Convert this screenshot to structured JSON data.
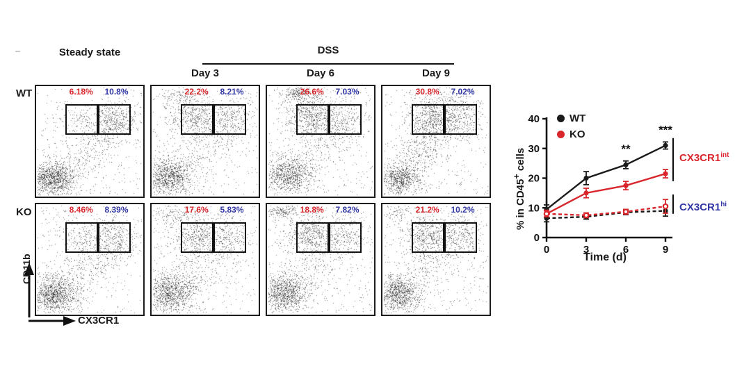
{
  "figure": {
    "headers": {
      "steady_state": "Steady state",
      "dss": "DSS",
      "days": [
        "Day 3",
        "Day 6",
        "Day 9"
      ]
    },
    "row_labels": [
      "WT",
      "KO"
    ],
    "axis": {
      "x": "CX3CR1",
      "y": "CD11b"
    },
    "colors": {
      "red": "#d9262c",
      "blue": "#3138a5",
      "black": "#1a1a1a"
    }
  },
  "flow_panels": {
    "gate_names": [
      "CX3CR1-int gate",
      "CX3CR1-hi gate"
    ],
    "rows": [
      {
        "label": "WT",
        "cells": [
          {
            "condition": "Steady state",
            "int_pct": "6.18%",
            "hi_pct": "10.8%",
            "clusters": [
              {
                "t": "noise",
                "n": 300
              },
              {
                "t": "blob",
                "x": 0.15,
                "y": 0.84,
                "sx": 0.1,
                "sy": 0.07,
                "n": 950
              },
              {
                "t": "band",
                "x0": 0.08,
                "y0": 0.94,
                "x1": 0.88,
                "y1": 0.22,
                "w": 0.1,
                "n": 520
              },
              {
                "t": "blob",
                "x": 0.42,
                "y": 0.31,
                "sx": 0.11,
                "sy": 0.09,
                "n": 130
              },
              {
                "t": "blob",
                "x": 0.74,
                "y": 0.3,
                "sx": 0.1,
                "sy": 0.09,
                "n": 320
              }
            ]
          },
          {
            "condition": "DSS Day 3",
            "int_pct": "22.2%",
            "hi_pct": "8.21%",
            "clusters": [
              {
                "t": "noise",
                "n": 320
              },
              {
                "t": "blob",
                "x": 0.16,
                "y": 0.82,
                "sx": 0.1,
                "sy": 0.08,
                "n": 800
              },
              {
                "t": "band",
                "x0": 0.1,
                "y0": 0.92,
                "x1": 0.8,
                "y1": 0.3,
                "w": 0.11,
                "n": 380
              },
              {
                "t": "blob",
                "x": 0.4,
                "y": 0.28,
                "sx": 0.12,
                "sy": 0.1,
                "n": 520
              },
              {
                "t": "blob",
                "x": 0.72,
                "y": 0.3,
                "sx": 0.1,
                "sy": 0.09,
                "n": 220
              },
              {
                "t": "blob",
                "x": 0.25,
                "y": 0.08,
                "sx": 0.1,
                "sy": 0.04,
                "n": 90
              }
            ]
          },
          {
            "condition": "DSS Day 6",
            "int_pct": "26.6%",
            "hi_pct": "7.03%",
            "clusters": [
              {
                "t": "noise",
                "n": 320
              },
              {
                "t": "blob",
                "x": 0.2,
                "y": 0.8,
                "sx": 0.11,
                "sy": 0.08,
                "n": 750
              },
              {
                "t": "band",
                "x0": 0.12,
                "y0": 0.9,
                "x1": 0.75,
                "y1": 0.32,
                "w": 0.1,
                "n": 320
              },
              {
                "t": "blob",
                "x": 0.4,
                "y": 0.27,
                "sx": 0.12,
                "sy": 0.1,
                "n": 600
              },
              {
                "t": "blob",
                "x": 0.72,
                "y": 0.3,
                "sx": 0.1,
                "sy": 0.09,
                "n": 200
              },
              {
                "t": "blob",
                "x": 0.28,
                "y": 0.06,
                "sx": 0.08,
                "sy": 0.035,
                "n": 230
              }
            ]
          },
          {
            "condition": "DSS Day 9",
            "int_pct": "30.8%",
            "hi_pct": "7.02%",
            "clusters": [
              {
                "t": "noise",
                "n": 320
              },
              {
                "t": "blob",
                "x": 0.16,
                "y": 0.84,
                "sx": 0.09,
                "sy": 0.06,
                "n": 500
              },
              {
                "t": "band",
                "x0": 0.06,
                "y0": 0.95,
                "x1": 0.72,
                "y1": 0.12,
                "w": 0.1,
                "n": 900
              },
              {
                "t": "blob",
                "x": 0.44,
                "y": 0.28,
                "sx": 0.11,
                "sy": 0.1,
                "n": 420
              },
              {
                "t": "blob",
                "x": 0.74,
                "y": 0.3,
                "sx": 0.1,
                "sy": 0.09,
                "n": 210
              }
            ]
          }
        ]
      },
      {
        "label": "KO",
        "cells": [
          {
            "condition": "Steady state",
            "int_pct": "8.46%",
            "hi_pct": "8.39%",
            "clusters": [
              {
                "t": "noise",
                "n": 320
              },
              {
                "t": "blob",
                "x": 0.16,
                "y": 0.82,
                "sx": 0.11,
                "sy": 0.08,
                "n": 950
              },
              {
                "t": "band",
                "x0": 0.08,
                "y0": 0.92,
                "x1": 0.85,
                "y1": 0.28,
                "w": 0.11,
                "n": 480
              },
              {
                "t": "blob",
                "x": 0.42,
                "y": 0.31,
                "sx": 0.11,
                "sy": 0.09,
                "n": 180
              },
              {
                "t": "blob",
                "x": 0.73,
                "y": 0.3,
                "sx": 0.1,
                "sy": 0.09,
                "n": 230
              }
            ]
          },
          {
            "condition": "DSS Day 3",
            "int_pct": "17.6%",
            "hi_pct": "5.83%",
            "clusters": [
              {
                "t": "noise",
                "n": 330
              },
              {
                "t": "blob",
                "x": 0.17,
                "y": 0.8,
                "sx": 0.12,
                "sy": 0.09,
                "n": 950
              },
              {
                "t": "band",
                "x0": 0.1,
                "y0": 0.9,
                "x1": 0.78,
                "y1": 0.3,
                "w": 0.11,
                "n": 350
              },
              {
                "t": "blob",
                "x": 0.41,
                "y": 0.28,
                "sx": 0.12,
                "sy": 0.1,
                "n": 460
              },
              {
                "t": "blob",
                "x": 0.73,
                "y": 0.3,
                "sx": 0.1,
                "sy": 0.09,
                "n": 160
              },
              {
                "t": "blob",
                "x": 0.18,
                "y": 0.08,
                "sx": 0.09,
                "sy": 0.04,
                "n": 80
              }
            ]
          },
          {
            "condition": "DSS Day 6",
            "int_pct": "18.8%",
            "hi_pct": "7.82%",
            "clusters": [
              {
                "t": "noise",
                "n": 330
              },
              {
                "t": "blob",
                "x": 0.16,
                "y": 0.8,
                "sx": 0.11,
                "sy": 0.08,
                "n": 850
              },
              {
                "t": "band",
                "x0": 0.08,
                "y0": 0.92,
                "x1": 0.7,
                "y1": 0.34,
                "w": 0.12,
                "n": 330
              },
              {
                "t": "blob",
                "x": 0.4,
                "y": 0.28,
                "sx": 0.12,
                "sy": 0.1,
                "n": 480
              },
              {
                "t": "blob",
                "x": 0.71,
                "y": 0.29,
                "sx": 0.1,
                "sy": 0.09,
                "n": 200
              },
              {
                "t": "blob",
                "x": 0.15,
                "y": 0.06,
                "sx": 0.07,
                "sy": 0.035,
                "n": 170
              }
            ]
          },
          {
            "condition": "DSS Day 9",
            "int_pct": "21.2%",
            "hi_pct": "10.2%",
            "clusters": [
              {
                "t": "noise",
                "n": 330
              },
              {
                "t": "blob",
                "x": 0.15,
                "y": 0.8,
                "sx": 0.1,
                "sy": 0.08,
                "n": 800
              },
              {
                "t": "band",
                "x0": 0.08,
                "y0": 0.9,
                "x1": 0.72,
                "y1": 0.3,
                "w": 0.11,
                "n": 320
              },
              {
                "t": "blob",
                "x": 0.41,
                "y": 0.28,
                "sx": 0.12,
                "sy": 0.1,
                "n": 500
              },
              {
                "t": "blob",
                "x": 0.73,
                "y": 0.29,
                "sx": 0.1,
                "sy": 0.09,
                "n": 260
              },
              {
                "t": "blob",
                "x": 0.13,
                "y": 0.07,
                "sx": 0.07,
                "sy": 0.04,
                "n": 70
              }
            ]
          }
        ]
      }
    ]
  },
  "chart_data": {
    "type": "line",
    "x": [
      0,
      3,
      6,
      9
    ],
    "xlabel": "Time (d)",
    "ylabel": "% in CD45+ cells",
    "ylim": [
      0,
      40
    ],
    "yticks": [
      0,
      10,
      20,
      30,
      40
    ],
    "xticks": [
      0,
      3,
      6,
      9
    ],
    "grid": false,
    "legend_position": "upper-left-inside",
    "series": [
      {
        "name": "WT CX3CR1int",
        "color": "#1a1a1a",
        "style": "solid",
        "values": [
          9.5,
          20,
          24.5,
          31
        ],
        "errors": [
          1.5,
          2.2,
          1.3,
          1.2
        ]
      },
      {
        "name": "KO CX3CR1int",
        "color": "#d9262c",
        "style": "solid",
        "values": [
          8,
          15,
          17.5,
          21.5
        ],
        "errors": [
          1.2,
          1.6,
          1.4,
          1.4
        ]
      },
      {
        "name": "WT CX3CR1hi",
        "color": "#1a1a1a",
        "style": "dashed",
        "values": [
          6.5,
          7,
          8.5,
          9
        ],
        "errors": [
          1.2,
          0.8,
          0.8,
          1.8
        ]
      },
      {
        "name": "KO CX3CR1hi",
        "color": "#d9262c",
        "style": "dashed",
        "values": [
          8,
          7.5,
          8.7,
          10.5
        ],
        "errors": [
          1.0,
          0.8,
          0.8,
          2.3
        ]
      }
    ],
    "legend": [
      {
        "label": "WT",
        "color": "#1a1a1a"
      },
      {
        "label": "KO",
        "color": "#d9262c"
      }
    ],
    "significance": [
      {
        "text": "**",
        "day": 6,
        "value": 28.5
      },
      {
        "text": "***",
        "day": 9,
        "value": 35
      }
    ],
    "group_labels": [
      {
        "base": "CX3CR1",
        "sup": "int",
        "color": "#d9262c",
        "bracket": {
          "from": 19,
          "to": 33.5
        }
      },
      {
        "base": "CX3CR1",
        "sup": "hi",
        "color": "#3138a5",
        "bracket": {
          "from": 8,
          "to": 14.5
        }
      }
    ]
  },
  "chart_ui": {
    "ylabel_parts": {
      "pre": "% in CD45",
      "sup": "+",
      "post": " cells"
    }
  }
}
